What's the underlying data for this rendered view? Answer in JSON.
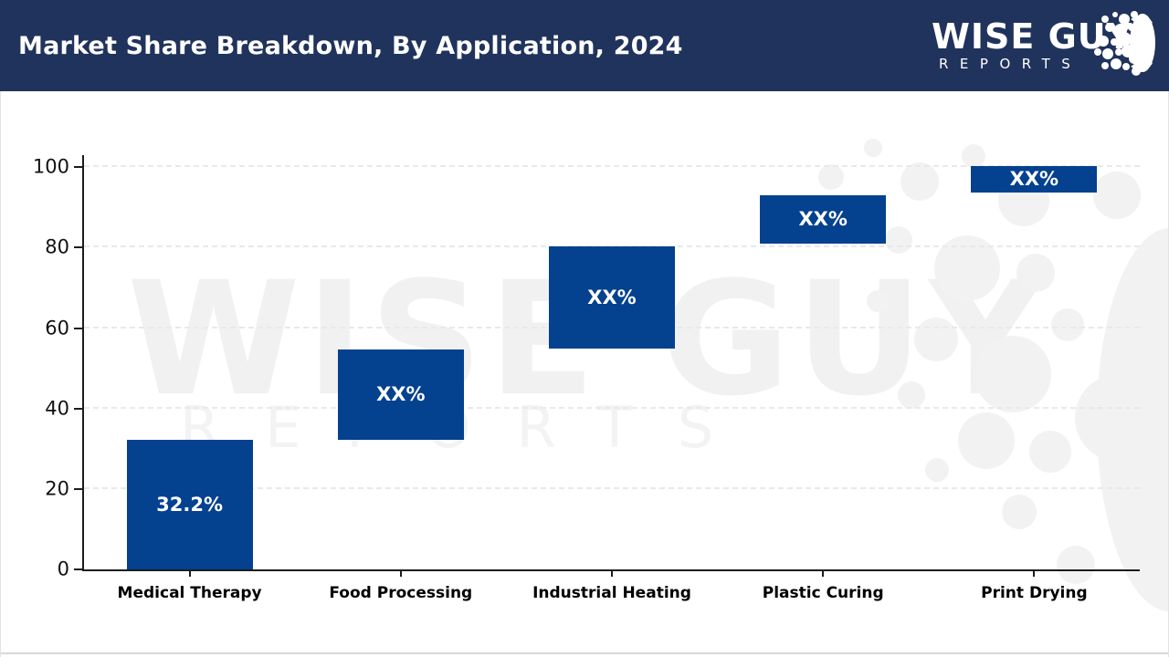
{
  "header": {
    "title": "Market Share Breakdown, By Application, 2024",
    "bg_color": "#20335c"
  },
  "logo": {
    "line1": "WISE GUY",
    "line2": "REPORTS"
  },
  "watermark": {
    "line1": "WISE GUY",
    "line2": "REPORTS"
  },
  "chart_data": {
    "type": "bar",
    "variant": "waterfall",
    "title": "Market Share Breakdown, By Application, 2024",
    "categories": [
      "Medical Therapy",
      "Food Processing",
      "Industrial Heating",
      "Plastic Curing",
      "Print Drying"
    ],
    "bars": [
      {
        "category": "Medical Therapy",
        "start": 0,
        "end": 32.2,
        "label": "32.2%"
      },
      {
        "category": "Food Processing",
        "start": 32.2,
        "end": 54.6,
        "label": "XX%"
      },
      {
        "category": "Industrial Heating",
        "start": 54.9,
        "end": 80.3,
        "label": "XX%"
      },
      {
        "category": "Plastic Curing",
        "start": 80.9,
        "end": 93.1,
        "label": "XX%"
      },
      {
        "category": "Print Drying",
        "start": 93.7,
        "end": 100.2,
        "label": "XX%"
      }
    ],
    "ylim": [
      0,
      103
    ],
    "yticks": [
      0,
      20,
      40,
      60,
      80,
      100
    ],
    "xlabel": "",
    "ylabel": "",
    "grid": "dashed horizontal",
    "legend": "none",
    "bar_color": "#04418f",
    "bar_label_color": "#ffffff",
    "grid_color": "#e9e9e9",
    "axis_color": "#1c1c1c"
  }
}
